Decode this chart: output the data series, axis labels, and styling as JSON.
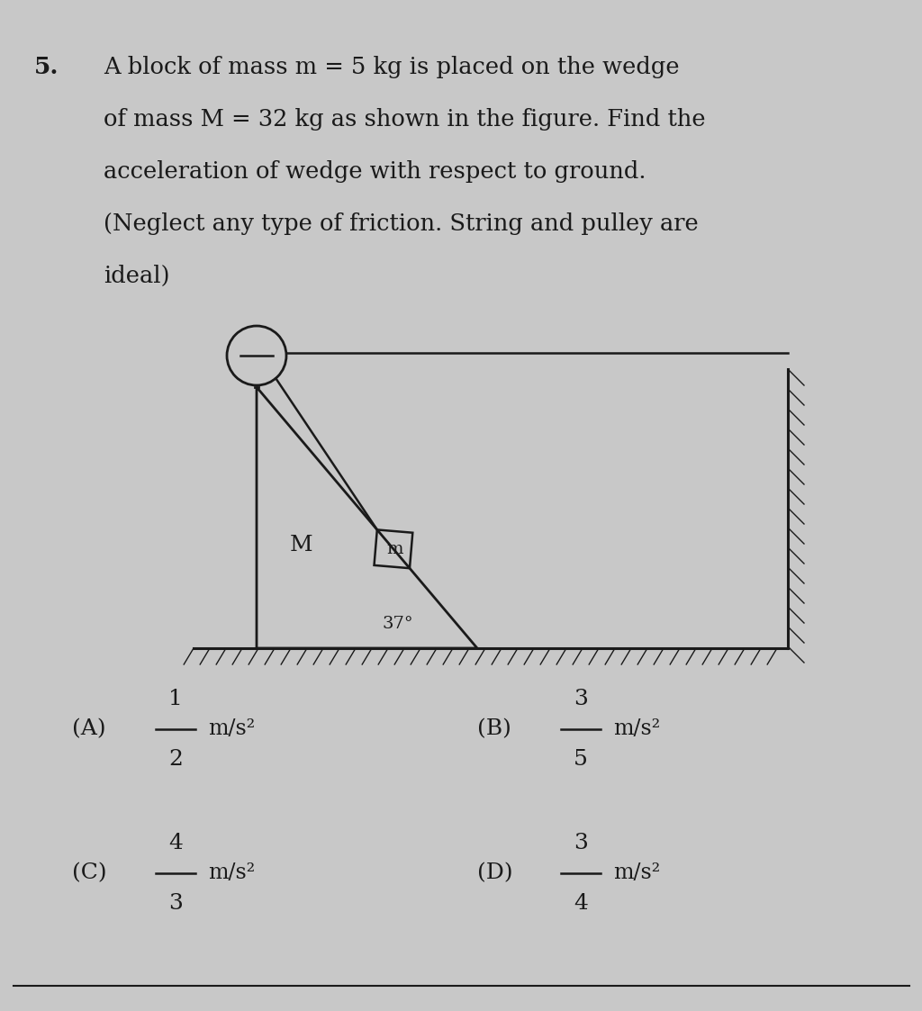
{
  "page_bg": "#c8c8c8",
  "text_color": "#1a1a1a",
  "line_color": "#1a1a1a",
  "question_number": "5.",
  "q_lines": [
    "A block of mass m = 5 kg is placed on the wedge",
    "of mass M = 32 kg as shown in the figure. Find the",
    "acceleration of wedge with respect to ground.",
    "(Neglect any type of friction. String and pulley are",
    "ideal)"
  ],
  "angle_label": "37°",
  "wedge_label": "M",
  "block_label": "m",
  "options": [
    {
      "label": "(A)",
      "numerator": "1",
      "denominator": "2",
      "unit": "m/s²"
    },
    {
      "label": "(B)",
      "numerator": "3",
      "denominator": "5",
      "unit": "m/s²"
    },
    {
      "label": "(C)",
      "numerator": "4",
      "denominator": "3",
      "unit": "m/s²"
    },
    {
      "label": "(D)",
      "numerator": "3",
      "denominator": "4",
      "unit": "m/s²"
    }
  ]
}
